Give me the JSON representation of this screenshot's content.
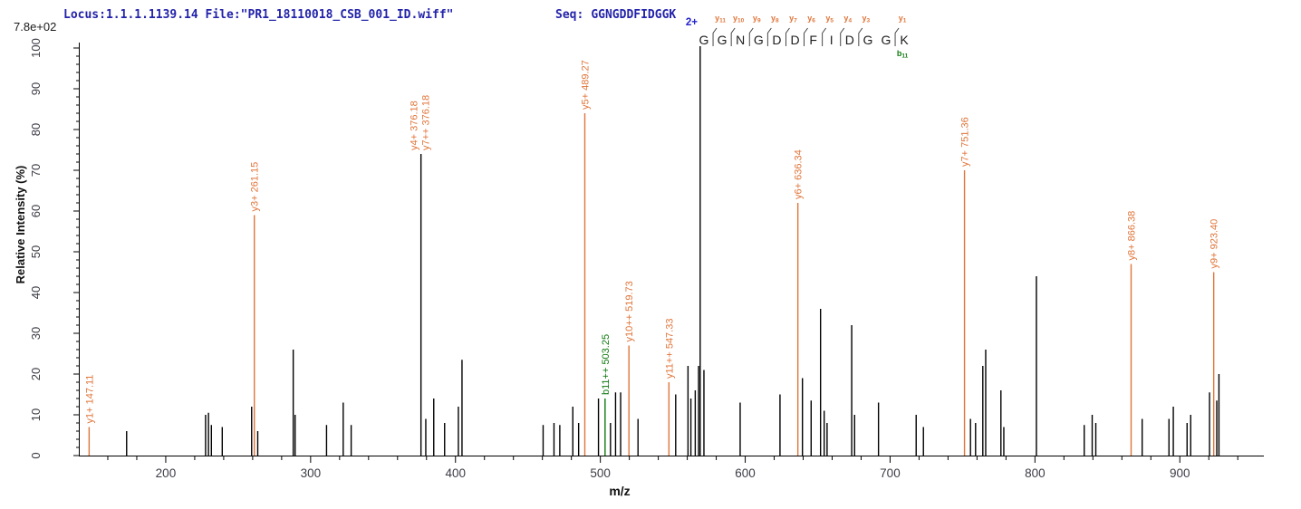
{
  "header": {
    "locus_file": "Locus:1.1.1.1139.14 File:\"PR1_18110018_CSB_001_ID.wiff\"",
    "seq_label": "Seq:",
    "seq_value": "GGNGDDFIDGGK"
  },
  "colors": {
    "header_blue": "#2323ab",
    "charge_blue": "#2222cc",
    "y_ion": "#E0753A",
    "b_ion": "#107A10",
    "peak_black": "#000000",
    "axis": "#000000",
    "tick_label": "#3c3c46",
    "residue": "#1c1c1c"
  },
  "chart_data": {
    "type": "bar",
    "subtype": "ms2-stick-spectrum",
    "xlabel": "m/z",
    "ylabel": "Relative  Intensity  (%)",
    "max_intensity_label": "7.8e+02",
    "xlim": [
      140,
      958
    ],
    "ylim": [
      0,
      100
    ],
    "x_major_ticks": [
      200,
      300,
      400,
      500,
      600,
      700,
      800,
      900
    ],
    "x_minor_step": 20,
    "y_major_step": 10,
    "y_minor_step": 2,
    "grid": false,
    "legend": "none",
    "precursor_annotation": {
      "charge": "2+",
      "residues": [
        "G",
        "G",
        "N",
        "G",
        "D",
        "D",
        "F",
        "I",
        "D",
        "G",
        "G",
        "K"
      ],
      "y_cuts": [
        {
          "pos": 1,
          "ion": "y",
          "sub": "11"
        },
        {
          "pos": 2,
          "ion": "y",
          "sub": "10"
        },
        {
          "pos": 3,
          "ion": "y",
          "sub": "9"
        },
        {
          "pos": 4,
          "ion": "y",
          "sub": "8"
        },
        {
          "pos": 5,
          "ion": "y",
          "sub": "7"
        },
        {
          "pos": 6,
          "ion": "y",
          "sub": "6"
        },
        {
          "pos": 7,
          "ion": "y",
          "sub": "5"
        },
        {
          "pos": 8,
          "ion": "y",
          "sub": "4"
        },
        {
          "pos": 9,
          "ion": "y",
          "sub": "3"
        },
        {
          "pos": 11,
          "ion": "y",
          "sub": "1"
        }
      ],
      "b_cuts": [
        {
          "pos": 11,
          "ion": "b",
          "sub": "11"
        }
      ]
    },
    "peaks": [
      {
        "mz": 147.11,
        "pct": 7,
        "ion": "y",
        "label": "y1+ 147.11"
      },
      {
        "mz": 173,
        "pct": 6
      },
      {
        "mz": 227.5,
        "pct": 10
      },
      {
        "mz": 229.5,
        "pct": 10.5
      },
      {
        "mz": 231.5,
        "pct": 7.5
      },
      {
        "mz": 239,
        "pct": 7
      },
      {
        "mz": 259.3,
        "pct": 12
      },
      {
        "mz": 261.15,
        "pct": 59,
        "ion": "y",
        "label": "y3+ 261.15"
      },
      {
        "mz": 263.5,
        "pct": 6
      },
      {
        "mz": 288,
        "pct": 26
      },
      {
        "mz": 289.3,
        "pct": 10
      },
      {
        "mz": 311,
        "pct": 7.5
      },
      {
        "mz": 322.5,
        "pct": 13
      },
      {
        "mz": 328,
        "pct": 7.5
      },
      {
        "mz": 376.18,
        "pct": 74,
        "labels": [
          "y4+ 376.18",
          "y7++ 376.18"
        ],
        "label_ion": "y"
      },
      {
        "mz": 379.5,
        "pct": 9
      },
      {
        "mz": 385,
        "pct": 14
      },
      {
        "mz": 392.5,
        "pct": 8
      },
      {
        "mz": 402,
        "pct": 12
      },
      {
        "mz": 404.5,
        "pct": 23.5
      },
      {
        "mz": 460.5,
        "pct": 7.5
      },
      {
        "mz": 468,
        "pct": 8
      },
      {
        "mz": 472,
        "pct": 7.5
      },
      {
        "mz": 481,
        "pct": 12
      },
      {
        "mz": 485,
        "pct": 8
      },
      {
        "mz": 489.27,
        "pct": 84,
        "ion": "y",
        "label": "y5+ 489.27"
      },
      {
        "mz": 498.7,
        "pct": 14
      },
      {
        "mz": 503.25,
        "pct": 14,
        "ion": "b",
        "label": "b11++ 503.25"
      },
      {
        "mz": 507,
        "pct": 8
      },
      {
        "mz": 510.5,
        "pct": 15.5
      },
      {
        "mz": 514,
        "pct": 15.5
      },
      {
        "mz": 519.73,
        "pct": 27,
        "ion": "y",
        "label": "y10++ 519.73"
      },
      {
        "mz": 526,
        "pct": 9
      },
      {
        "mz": 547.33,
        "pct": 18,
        "ion": "y",
        "label": "y11++ 547.33"
      },
      {
        "mz": 552,
        "pct": 15
      },
      {
        "mz": 560.5,
        "pct": 22
      },
      {
        "mz": 562.5,
        "pct": 14
      },
      {
        "mz": 565.5,
        "pct": 16
      },
      {
        "mz": 567.8,
        "pct": 22
      },
      {
        "mz": 568.9,
        "pct": 100,
        "precursor": true
      },
      {
        "mz": 571.5,
        "pct": 21
      },
      {
        "mz": 596.5,
        "pct": 13
      },
      {
        "mz": 624,
        "pct": 15
      },
      {
        "mz": 636.34,
        "pct": 62,
        "ion": "y",
        "label": "y6+ 636.34"
      },
      {
        "mz": 639.5,
        "pct": 19
      },
      {
        "mz": 645.5,
        "pct": 13.5
      },
      {
        "mz": 652,
        "pct": 36
      },
      {
        "mz": 654.5,
        "pct": 11
      },
      {
        "mz": 656.5,
        "pct": 8
      },
      {
        "mz": 673.5,
        "pct": 32
      },
      {
        "mz": 675.5,
        "pct": 10
      },
      {
        "mz": 692,
        "pct": 13
      },
      {
        "mz": 718,
        "pct": 10
      },
      {
        "mz": 723,
        "pct": 7
      },
      {
        "mz": 751.36,
        "pct": 70,
        "ion": "y",
        "label": "y7+ 751.36"
      },
      {
        "mz": 755.5,
        "pct": 9
      },
      {
        "mz": 759,
        "pct": 8
      },
      {
        "mz": 764,
        "pct": 22
      },
      {
        "mz": 766,
        "pct": 26
      },
      {
        "mz": 776.5,
        "pct": 16
      },
      {
        "mz": 778.5,
        "pct": 7
      },
      {
        "mz": 801,
        "pct": 44
      },
      {
        "mz": 834,
        "pct": 7.5
      },
      {
        "mz": 839.5,
        "pct": 10
      },
      {
        "mz": 842,
        "pct": 8
      },
      {
        "mz": 866.38,
        "pct": 47,
        "ion": "y",
        "label": "y8+ 866.38"
      },
      {
        "mz": 874,
        "pct": 9
      },
      {
        "mz": 892.5,
        "pct": 9
      },
      {
        "mz": 895.5,
        "pct": 12
      },
      {
        "mz": 905,
        "pct": 8
      },
      {
        "mz": 907.5,
        "pct": 10
      },
      {
        "mz": 920.5,
        "pct": 15.5
      },
      {
        "mz": 923.4,
        "pct": 45,
        "ion": "y",
        "label": "y9+ 923.40"
      },
      {
        "mz": 925.5,
        "pct": 13.5
      },
      {
        "mz": 927,
        "pct": 20
      }
    ]
  }
}
